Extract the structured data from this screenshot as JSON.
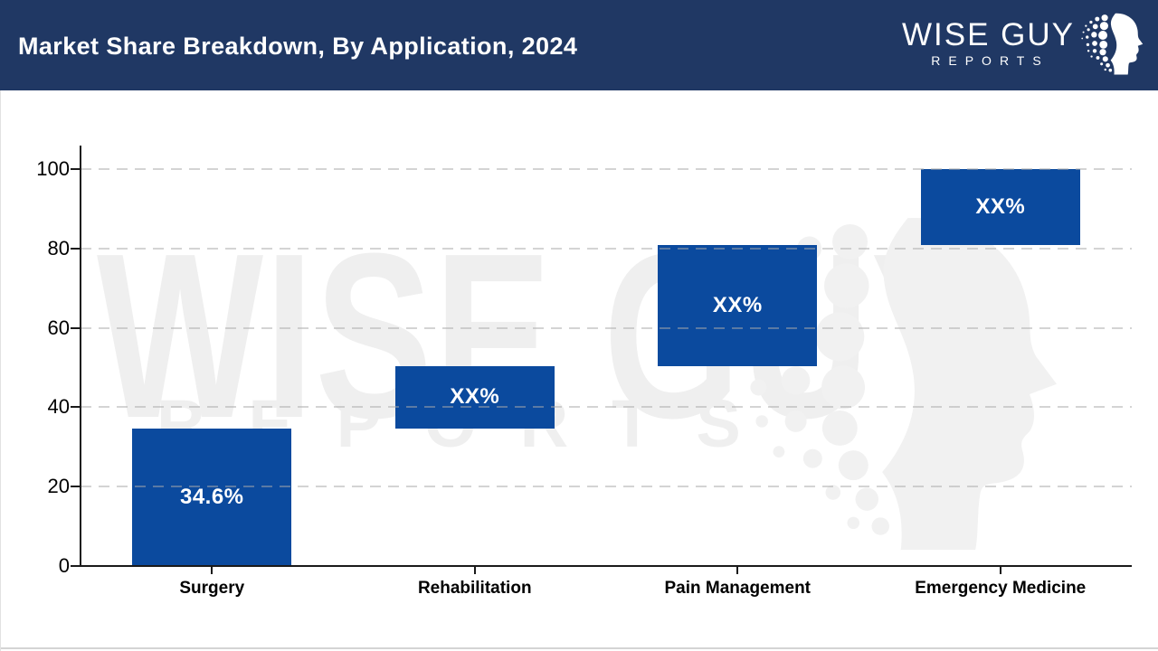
{
  "header": {
    "title": "Market Share Breakdown, By Application, 2024",
    "logo": {
      "line1": "WISE GUY",
      "line2": "REPORTS"
    }
  },
  "watermark": {
    "line1": "WISE GUY",
    "line2": "REPORTS"
  },
  "colors": {
    "header_bg": "#203864",
    "bar": "#0B4A9E",
    "axis": "#1A1A1A",
    "grid": "rgba(170,170,170,0.5)",
    "watermark": "#EFEFEF",
    "bar_label": "#FFFFFF"
  },
  "chart_data": {
    "type": "bar",
    "subtype": "waterfall",
    "title": "Market Share Breakdown, By Application, 2024",
    "categories": [
      "Surgery",
      "Rehabilitation",
      "Pain Management",
      "Emergency Medicine"
    ],
    "bars": [
      {
        "category": "Surgery",
        "start": 0,
        "end": 34.6,
        "label": "34.6%"
      },
      {
        "category": "Rehabilitation",
        "start": 34.6,
        "end": 50.4,
        "label": "XX%"
      },
      {
        "category": "Pain Management",
        "start": 50.4,
        "end": 80.9,
        "label": "XX%"
      },
      {
        "category": "Emergency Medicine",
        "start": 80.9,
        "end": 100,
        "label": "XX%"
      }
    ],
    "yticks": [
      0,
      20,
      40,
      60,
      80,
      100
    ],
    "ylim": [
      0,
      105.5
    ],
    "xlabel": "",
    "ylabel": "",
    "grid": "horizontal dashed, drawn over bars",
    "legend": null
  }
}
